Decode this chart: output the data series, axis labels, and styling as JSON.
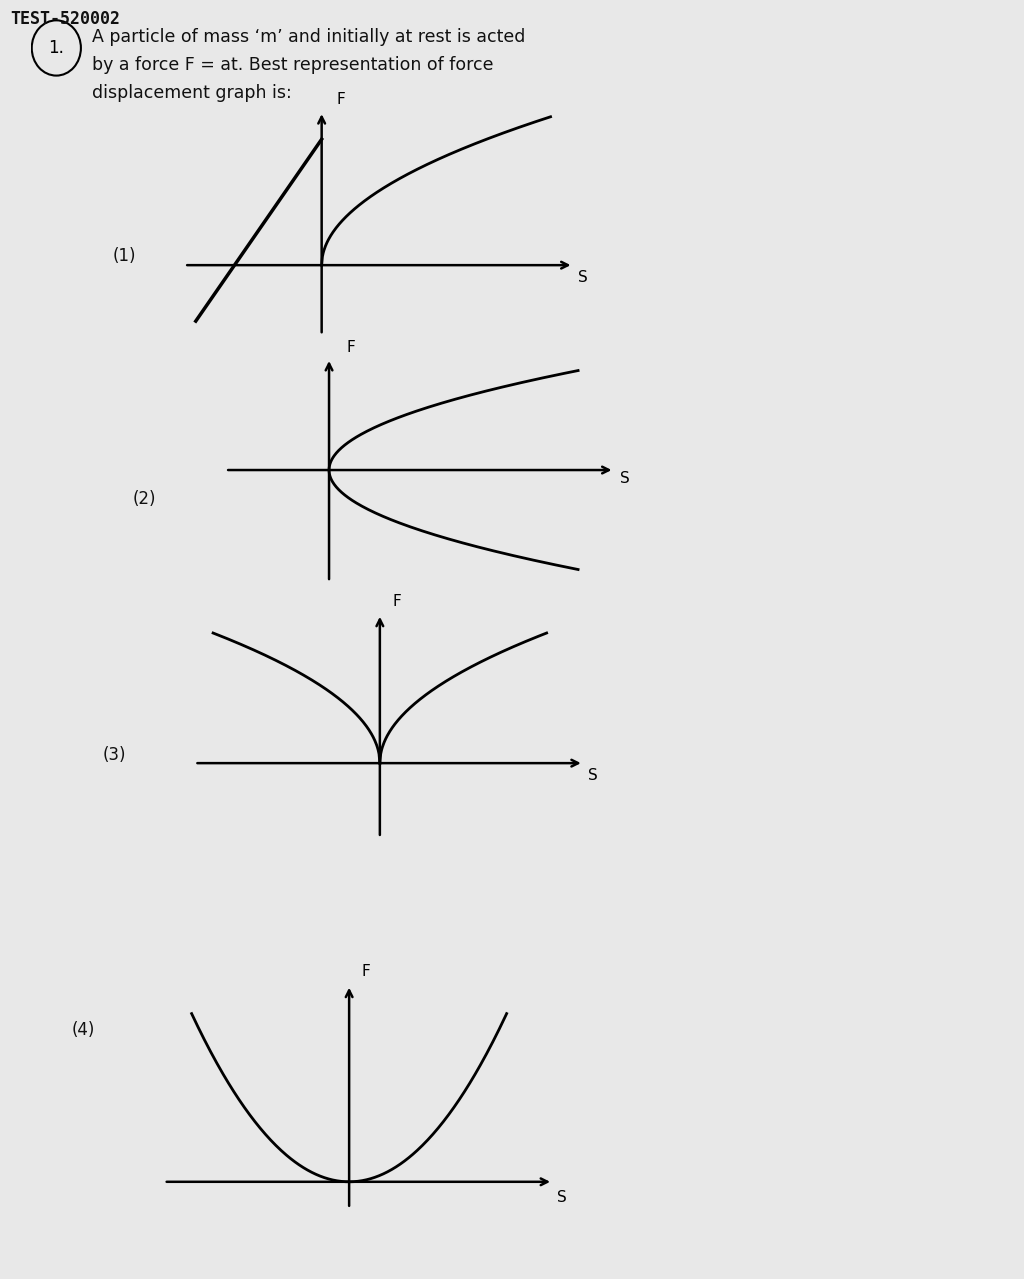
{
  "title": "TEST-520002",
  "background_color": "#e8e8e8",
  "text_color": "#111111",
  "graph1": {
    "label": "(1)",
    "curve_type": "sqrt_q1",
    "diag_line": true
  },
  "graph2": {
    "label": "(2)",
    "curve_type": "sideways_parabola_right"
  },
  "graph3": {
    "label": "(3)",
    "curve_type": "two_sqrt_branches_up"
  },
  "graph4": {
    "label": "(4)",
    "curve_type": "upward_parabola"
  },
  "xlabel": "S",
  "ylabel": "F",
  "question_lines": [
    "A particle of mass ‘m’ and initially at rest is acted",
    "by a force F = at. Best representation of force",
    "displacement graph is:"
  ]
}
